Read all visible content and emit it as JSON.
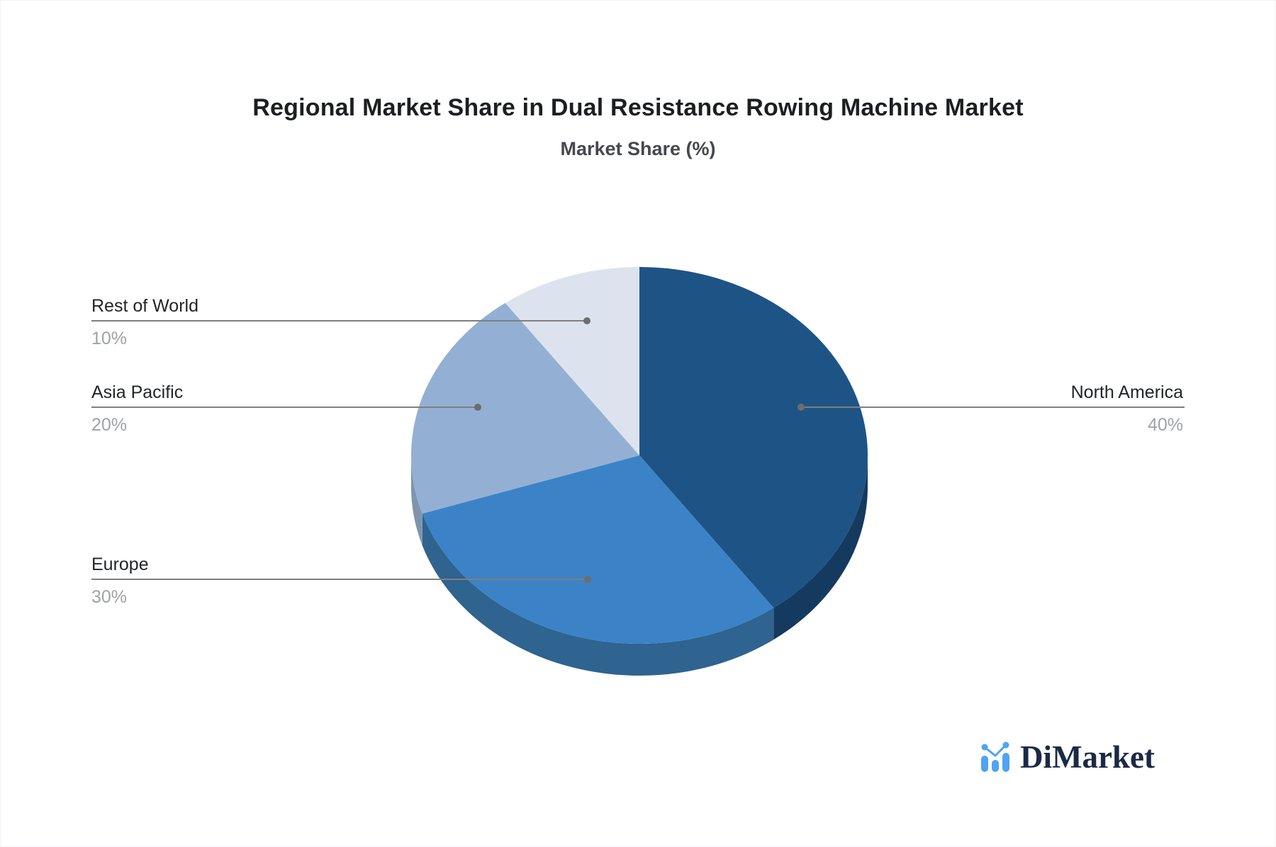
{
  "chart_data": {
    "type": "pie",
    "style": "3d",
    "title": "Regional Market Share in Dual Resistance Rowing Machine Market",
    "subtitle": "Market Share (%)",
    "unit": "%",
    "start_angle_deg": 90,
    "direction": "clockwise",
    "legend_position": "none",
    "data_labels": "leader-line-callouts",
    "slices": [
      {
        "label": "North America",
        "value": 40,
        "color": "#1e5485",
        "side_color": "#143a5f",
        "label_side": "right"
      },
      {
        "label": "Europe",
        "value": 30,
        "color": "#3b83c6",
        "side_color": "#2f6390",
        "label_side": "left"
      },
      {
        "label": "Asia Pacific",
        "value": 20,
        "color": "#93b0d4",
        "side_color": "#7e95ad",
        "label_side": "left"
      },
      {
        "label": "Rest of World",
        "value": 10,
        "color": "#dde3ee",
        "side_color": "#c6cfdc",
        "label_side": "left"
      }
    ],
    "callout_line_color": "#7f7f7f",
    "callout_dot_color": "#6d6d6d",
    "label_color": "#222527",
    "value_color": "#9fa2a6",
    "title_color": "#1c1e21",
    "subtitle_color": "#45484e"
  },
  "logo": {
    "text": "DiMarket",
    "icon": "bar-chart-trend-icon",
    "text_color": "#1b2a44",
    "icon_color": "#4da3f5"
  }
}
